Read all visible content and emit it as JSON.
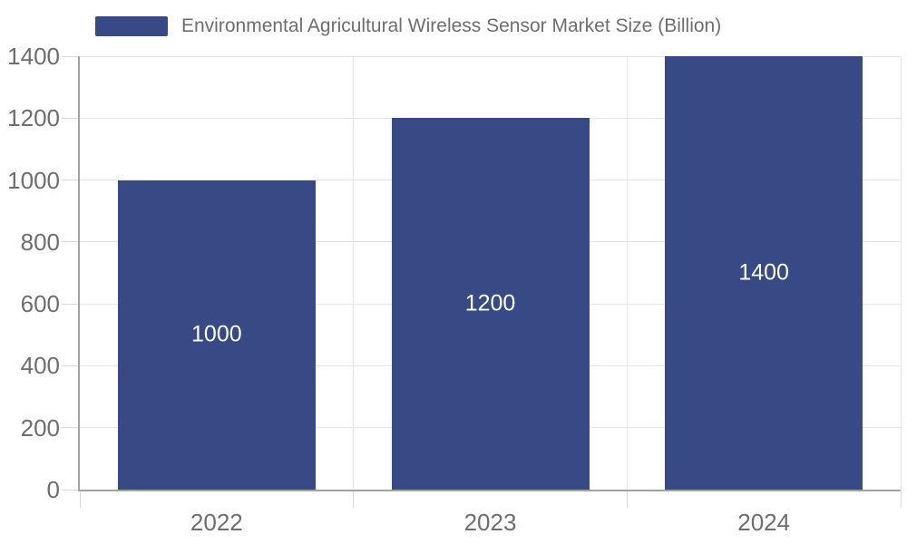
{
  "legend": {
    "position": "top"
  },
  "colors": {
    "bar": "#374a85",
    "axis": "#a3a3a3",
    "grid": "#e6e6e6",
    "tick_mark": "#d9d9d9",
    "tick_text": "#6e6e6e",
    "legend_text": "#6e6e6e",
    "value_label": "#ffffff",
    "background": "#ffffff"
  },
  "chart_data": {
    "type": "bar",
    "title": "Environmental Agricultural Wireless Sensor Market Size (Billion)",
    "categories": [
      "2022",
      "2023",
      "2024"
    ],
    "values": [
      1000,
      1200,
      1400
    ],
    "value_labels": [
      "1000",
      "1200",
      "1400"
    ],
    "xlabel": "",
    "ylabel": "",
    "ylim": [
      0,
      1400
    ],
    "yticks": [
      0,
      200,
      400,
      600,
      800,
      1000,
      1200,
      1400
    ],
    "grid": true,
    "legend_position": "top",
    "series": [
      {
        "name": "Environmental Agricultural Wireless Sensor Market Size (Billion)",
        "values": [
          1000,
          1200,
          1400
        ]
      }
    ]
  }
}
